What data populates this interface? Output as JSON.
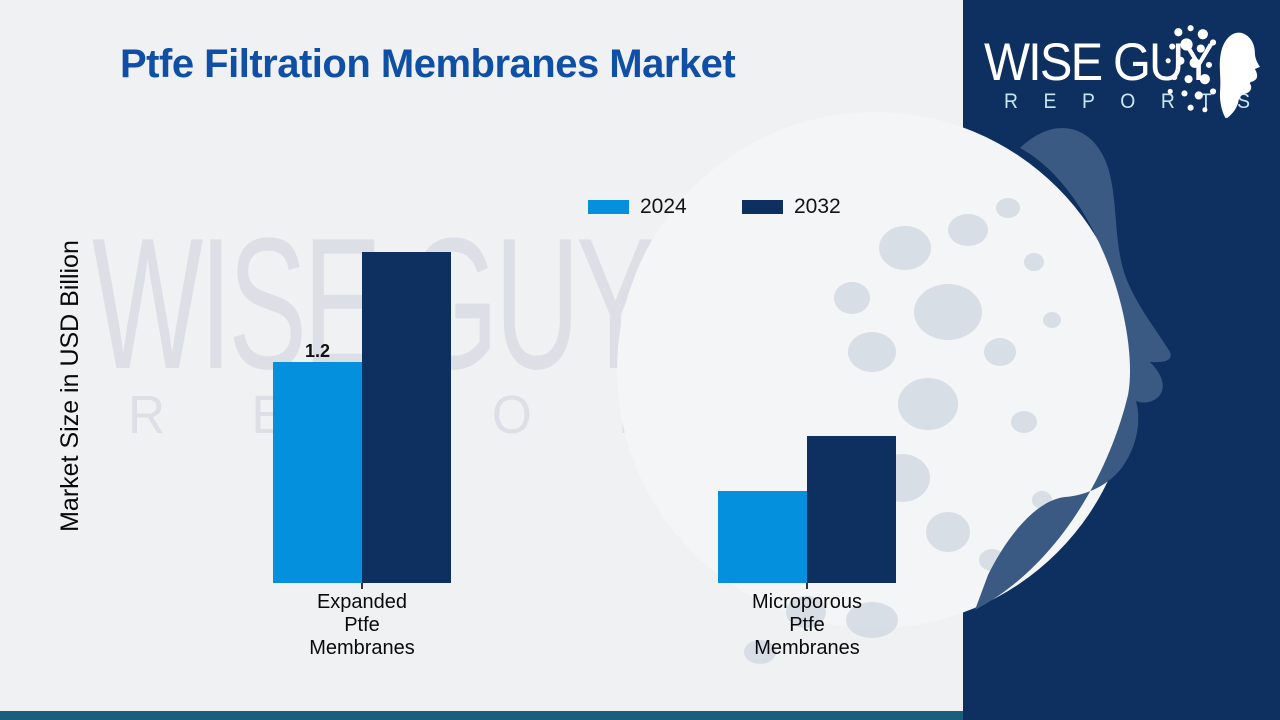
{
  "page": {
    "background_color": "#f0f1f2"
  },
  "title": {
    "text": "Ptfe Filtration Membranes Market",
    "color": "#0f4fa5"
  },
  "brand": {
    "name": "WISE GUY",
    "reports": "R E P O R T S",
    "panel_color": "#0e3060",
    "accent_strip_color": "#1a5d7c",
    "face_silhouette_color": "#3a5a84"
  },
  "watermark": {
    "line1": "WISE GUY",
    "line2": "R E P O R T S"
  },
  "legend": {
    "items": [
      {
        "label": "2024",
        "color": "#0590dd"
      },
      {
        "label": "2032",
        "color": "#0e3060"
      }
    ]
  },
  "chart_data": {
    "type": "bar",
    "title": "Ptfe Filtration Membranes Market",
    "xlabel": "",
    "ylabel": "Market Size in USD Billion",
    "categories": [
      "Expanded Ptfe Membranes",
      "Microporous Ptfe Membranes"
    ],
    "categories_display": [
      [
        "Expanded",
        "Ptfe",
        "Membranes"
      ],
      [
        "Microporous",
        "Ptfe",
        "Membranes"
      ]
    ],
    "series": [
      {
        "name": "2024",
        "color": "#0590dd",
        "values": [
          1.2,
          0.5
        ]
      },
      {
        "name": "2032",
        "color": "#0e3060",
        "values": [
          1.8,
          0.8
        ]
      }
    ],
    "bar_labels": [
      {
        "series": "2024",
        "category_index": 0,
        "text": "1.2"
      }
    ],
    "ylim": [
      0,
      2.0
    ],
    "grid": false,
    "axes_visible": false,
    "legend_position": "top-center"
  }
}
